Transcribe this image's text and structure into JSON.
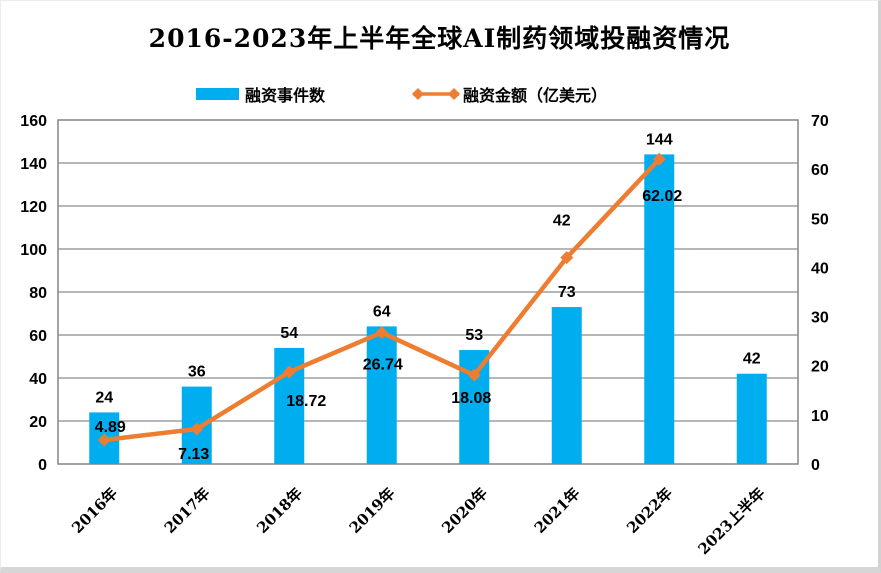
{
  "title": "2016-2023年上半年全球AI制药领域投融资情况",
  "legend": {
    "bar_label": "融资事件数",
    "line_label": "融资金额（亿美元）"
  },
  "chart_data": {
    "type": "combo",
    "title": "2016-2023年上半年全球AI制药领域投融资情况",
    "categories": [
      "2016年",
      "2017年",
      "2018年",
      "2019年",
      "2020年",
      "2021年",
      "2022年",
      "2023上半年"
    ],
    "series": [
      {
        "name": "融资事件数",
        "type": "bar",
        "axis": "left",
        "color": "#00AEEF",
        "values": [
          24,
          36,
          54,
          64,
          53,
          73,
          144,
          42
        ]
      },
      {
        "name": "融资金额（亿美元）",
        "type": "line",
        "axis": "right",
        "color": "#ED7D31",
        "values": [
          4.89,
          7.13,
          18.72,
          26.74,
          18.08,
          42,
          62.02,
          null
        ]
      }
    ],
    "left_axis": {
      "min": 0,
      "max": 160,
      "step": 20
    },
    "right_axis": {
      "min": 0,
      "max": 70,
      "step": 10
    },
    "grid": true,
    "legend_position": "top"
  },
  "colors": {
    "bar": "#00AEEF",
    "line": "#ED7D31",
    "grid": "#8C8C8C",
    "frame": "#8C8C8C",
    "text": "#000000"
  }
}
